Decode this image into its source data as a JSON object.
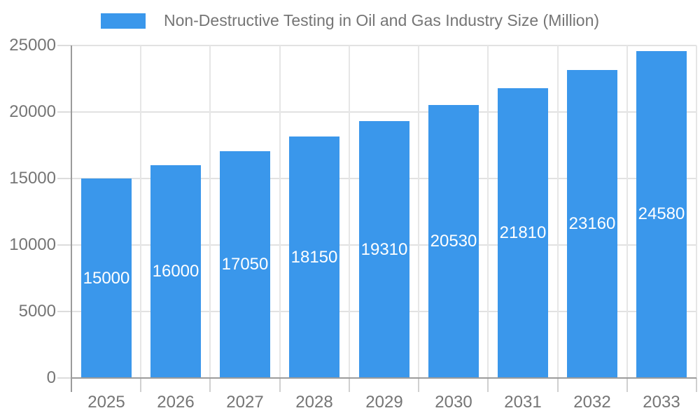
{
  "chart_data": {
    "type": "bar",
    "title": "Non-Destructive Testing in Oil and Gas Industry Size (Million)",
    "legend": {
      "position": "top",
      "label": "Non-Destructive Testing in Oil and Gas Industry Size (Million)"
    },
    "categories": [
      "2025",
      "2026",
      "2027",
      "2028",
      "2029",
      "2030",
      "2031",
      "2032",
      "2033"
    ],
    "values": [
      15000,
      16000,
      17050,
      18150,
      19310,
      20530,
      21810,
      23160,
      24580
    ],
    "xlabel": "",
    "ylabel": "",
    "ylim": [
      0,
      25000
    ],
    "yticks": [
      0,
      5000,
      10000,
      15000,
      20000,
      25000
    ],
    "ytick_labels": [
      "0",
      "5000",
      "10000",
      "15000",
      "20000",
      "25000"
    ],
    "grid": true,
    "bar_labels_inside": true,
    "colors": {
      "bar": "#3a97eb",
      "bar_label": "#ffffff",
      "axis_text": "#757575",
      "gridline": "#e2e2e2",
      "axis_line": "#9b9b9b"
    }
  }
}
